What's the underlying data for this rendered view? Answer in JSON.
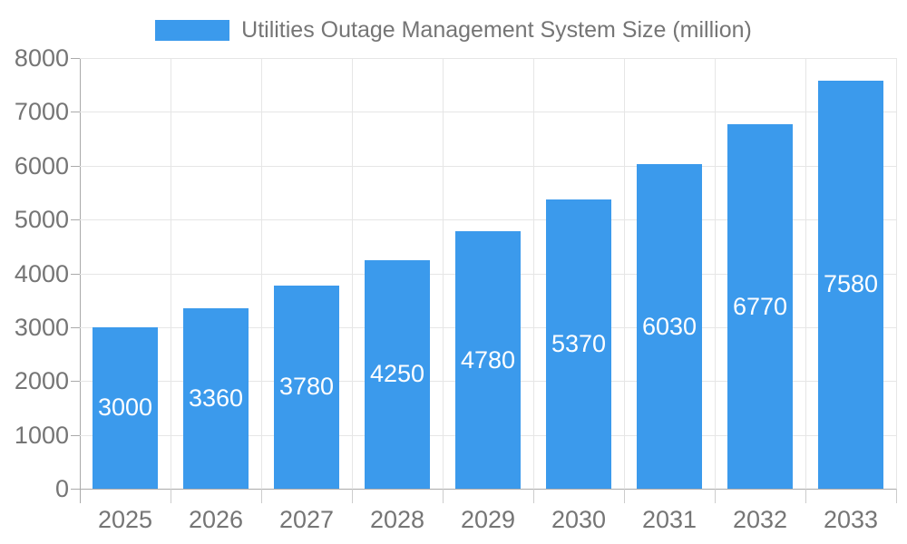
{
  "chart_data": {
    "type": "bar",
    "title": "Utilities Outage Management System Size (million)",
    "categories": [
      "2025",
      "2026",
      "2027",
      "2028",
      "2029",
      "2030",
      "2031",
      "2032",
      "2033"
    ],
    "values": [
      3000,
      3360,
      3780,
      4250,
      4780,
      5370,
      6030,
      6770,
      7580
    ],
    "series": [
      {
        "name": "Utilities Outage Management System Size (million)",
        "values": [
          3000,
          3360,
          3780,
          4250,
          4780,
          5370,
          6030,
          6770,
          7580
        ]
      }
    ],
    "xlabel": "",
    "ylabel": "",
    "ylim": [
      0,
      8000
    ],
    "ytick_step": 1000,
    "yticks": [
      0,
      1000,
      2000,
      3000,
      4000,
      5000,
      6000,
      7000,
      8000
    ],
    "grid": true,
    "legend_position": "top",
    "data_labels": "inside-center-white",
    "colors": {
      "bar": "#3B9AEC",
      "grid": "#E6E6E6",
      "axis": "#AAAAAA",
      "tick": "#CCCCCC",
      "text": "#757575",
      "label": "#FFFFFF",
      "background": "#FFFFFF"
    }
  },
  "legend": {
    "label": "Utilities Outage Management System Size (million)"
  }
}
